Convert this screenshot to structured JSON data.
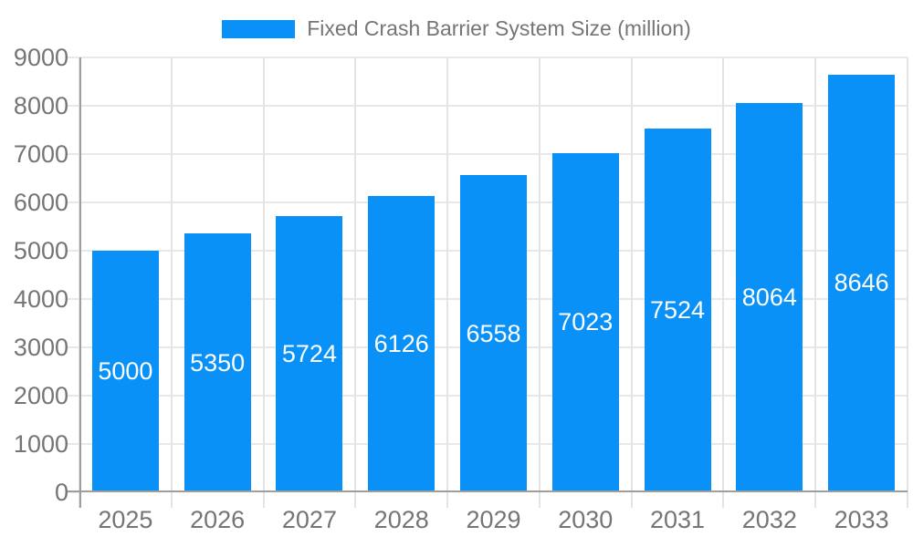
{
  "legend": {
    "series_label": "Fixed Crash Barrier System Size (million)"
  },
  "chart_data": {
    "type": "bar",
    "title": "Fixed Crash Barrier System Size (million)",
    "categories": [
      "2025",
      "2026",
      "2027",
      "2028",
      "2029",
      "2030",
      "2031",
      "2032",
      "2033"
    ],
    "values": [
      5000,
      5350,
      5724,
      6126,
      6558,
      7023,
      7524,
      8064,
      8646
    ],
    "series": [
      {
        "name": "Fixed Crash Barrier System Size (million)",
        "values": [
          5000,
          5350,
          5724,
          6126,
          6558,
          7023,
          7524,
          8064,
          8646
        ]
      }
    ],
    "xlabel": "",
    "ylabel": "",
    "ylim": [
      0,
      9000
    ],
    "ytick_step": 1000,
    "yticks": [
      0,
      1000,
      2000,
      3000,
      4000,
      5000,
      6000,
      7000,
      8000,
      9000
    ],
    "grid": true,
    "legend_position": "top",
    "bar_labels_inside": true,
    "colors": {
      "bar": "#0991f8",
      "bar_label_text": "#ffffff",
      "axis_text": "#757575",
      "legend_text": "#757575",
      "gridline": "#e8e8e8",
      "axis_line": "#9e9e9e",
      "background": "#ffffff"
    }
  }
}
